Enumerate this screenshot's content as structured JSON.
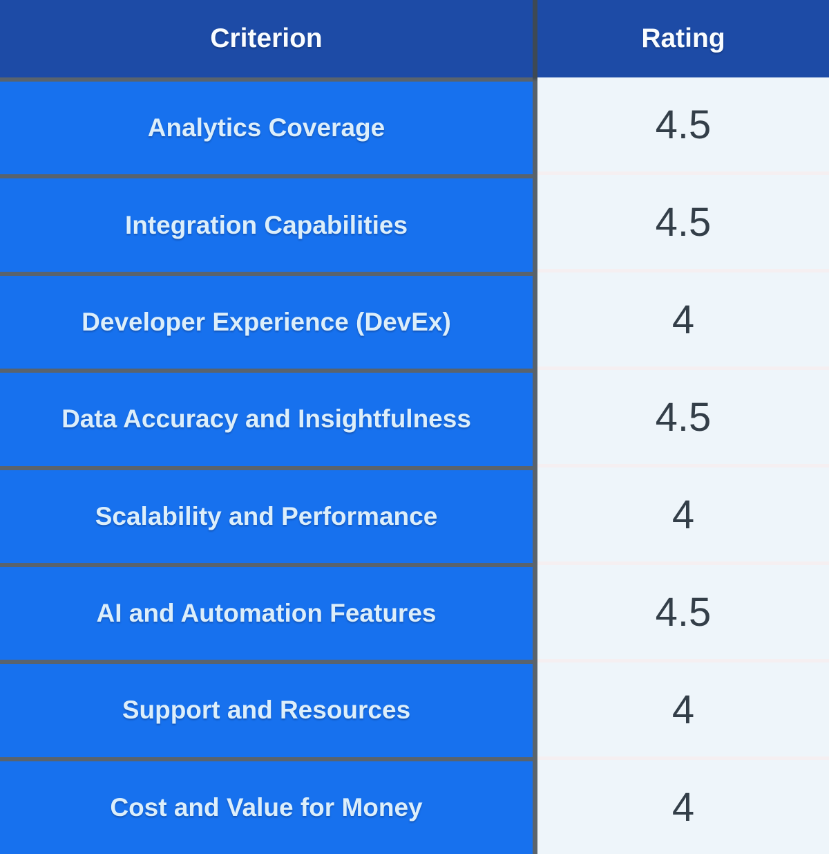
{
  "table": {
    "columns": [
      {
        "label": "Criterion"
      },
      {
        "label": "Rating"
      }
    ],
    "rows": [
      {
        "criterion": "Analytics Coverage",
        "rating": "4.5"
      },
      {
        "criterion": "Integration Capabilities",
        "rating": "4.5"
      },
      {
        "criterion": "Developer Experience (DevEx)",
        "rating": "4"
      },
      {
        "criterion": "Data Accuracy and Insightfulness",
        "rating": "4.5"
      },
      {
        "criterion": "Scalability and Performance",
        "rating": "4"
      },
      {
        "criterion": "AI and Automation Features",
        "rating": "4.5"
      },
      {
        "criterion": "Support and Resources",
        "rating": "4"
      },
      {
        "criterion": "Cost and Value for Money",
        "rating": "4"
      }
    ]
  },
  "chart_data": {
    "type": "table",
    "title": "",
    "columns": [
      "Criterion",
      "Rating"
    ],
    "rows": [
      [
        "Analytics Coverage",
        4.5
      ],
      [
        "Integration Capabilities",
        4.5
      ],
      [
        "Developer Experience (DevEx)",
        4
      ],
      [
        "Data Accuracy and Insightfulness",
        4.5
      ],
      [
        "Scalability and Performance",
        4
      ],
      [
        "AI and Automation Features",
        4.5
      ],
      [
        "Support and Resources",
        4
      ],
      [
        "Cost and Value for Money",
        4
      ]
    ]
  },
  "colors": {
    "header_bg": "#1d4ba6",
    "criterion_cell_bg": "#1771ee",
    "rating_cell_bg": "#eef5fa",
    "row_border_gray": "#59636d",
    "column_divider": "#4e5862",
    "rating_row_border": "#f5eff1",
    "header_text": "#f9fcfe",
    "criterion_text": "#dceefa",
    "rating_text": "#333e48"
  }
}
